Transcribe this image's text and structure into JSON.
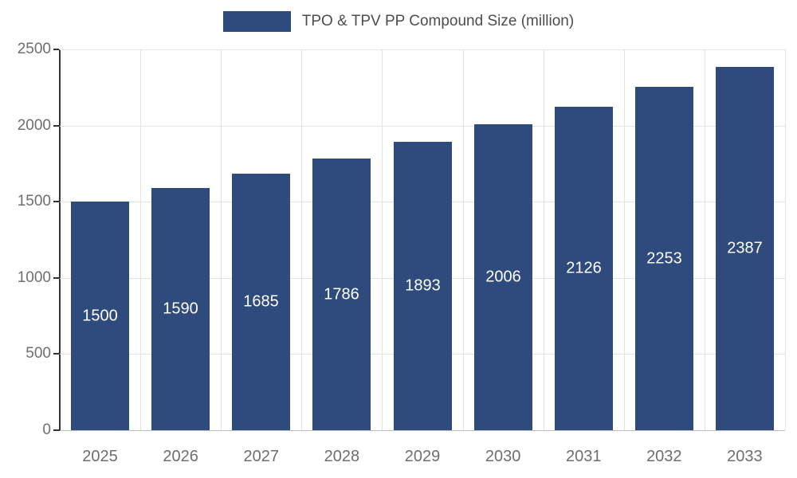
{
  "chart_data": {
    "type": "bar",
    "title": "TPO & TPV PP Compound Size (million)",
    "categories": [
      "2025",
      "2026",
      "2027",
      "2028",
      "2029",
      "2030",
      "2031",
      "2032",
      "2033"
    ],
    "values": [
      1500,
      1590,
      1685,
      1786,
      1893,
      2006,
      2126,
      2253,
      2387
    ],
    "xlabel": "",
    "ylabel": "",
    "ylim": [
      0,
      2500
    ],
    "yticks": [
      0,
      500,
      1000,
      1500,
      2000,
      2500
    ],
    "grid": true,
    "legend_position": "top-center",
    "colors": {
      "bar": "#2f4b7e",
      "value_label": "#ffffff",
      "tick_label": "#6e6e6e",
      "title_text": "#4d4d4d",
      "gridline": "#e3e3e3",
      "axis": "#333333"
    }
  }
}
